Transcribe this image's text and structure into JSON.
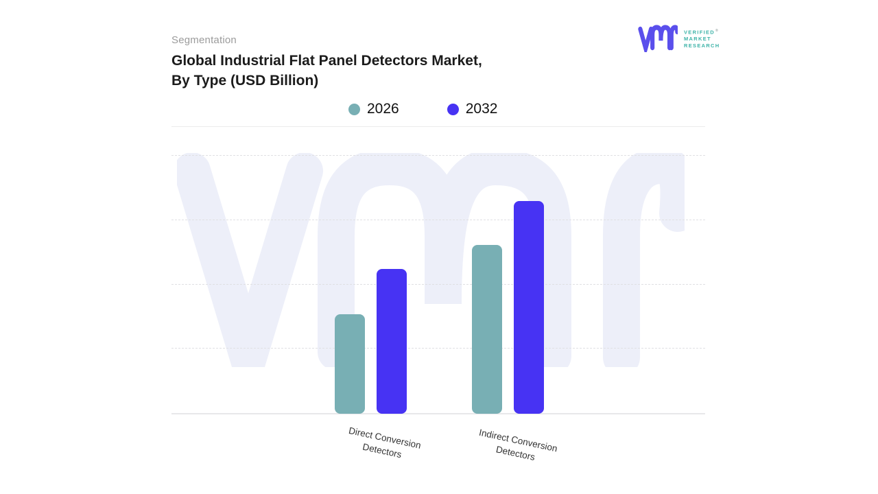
{
  "header": {
    "eyebrow": "Segmentation",
    "title_line1": "Global Industrial Flat Panel Detectors Market,",
    "title_line2": "By Type (USD Billion)"
  },
  "logo": {
    "glyph": "vmr-monogram",
    "word1": "VERIFIED",
    "reg_mark": "®",
    "word2": "MARKET",
    "word3": "RESEARCH",
    "glyph_color": "#5a4fec",
    "text_color": "#3db3a8"
  },
  "chart_data": {
    "type": "bar",
    "title": "Global Industrial Flat Panel Detectors Market, By Type (USD Billion)",
    "categories": [
      "Direct Conversion Detectors",
      "Indirect Conversion Detectors"
    ],
    "series": [
      {
        "name": "2026",
        "color": "#78afb4",
        "values": [
          1.55,
          2.62
        ]
      },
      {
        "name": "2032",
        "color": "#4733f3",
        "values": [
          2.25,
          3.31
        ]
      }
    ],
    "xlabel": "",
    "ylabel": "",
    "y_axis_labels_visible": false,
    "ylim": [
      0,
      4.45
    ],
    "gridlines": {
      "horizontal": true,
      "style": "dashed",
      "unit_spacing": 1,
      "count": 4
    },
    "legend_position": "top-center",
    "watermark": "vmr-monogram",
    "watermark_color": "#edeff9",
    "background": "#ffffff"
  }
}
